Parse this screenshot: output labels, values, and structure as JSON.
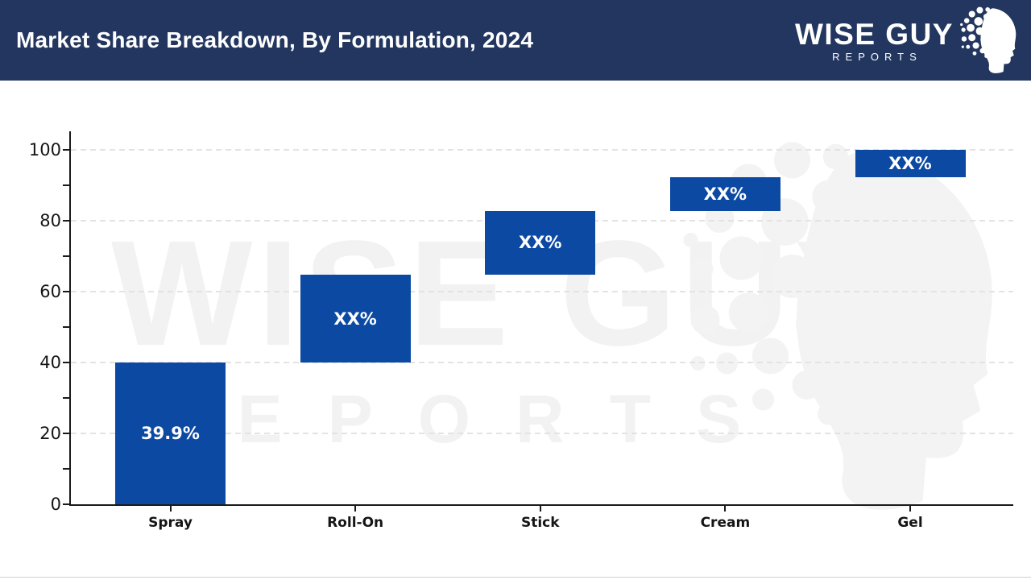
{
  "header": {
    "title": "Market Share Breakdown, By Formulation, 2024",
    "logo": {
      "name": "WISE GUY",
      "subname": "REPORTS"
    }
  },
  "watermark": {
    "line1": "WISE GUY",
    "line2": "REPORTS"
  },
  "colors": {
    "header_bg": "#22365F",
    "bar_fill": "#0C49A3",
    "grid_line": "#E3E3E3",
    "axis": "#1A1A1A",
    "bar_label": "#FFFFFF",
    "watermark": "#F2F2F2"
  },
  "chart_data": {
    "type": "bar",
    "variant": "waterfall",
    "title": "Market Share Breakdown, By Formulation, 2024",
    "xlabel": "",
    "ylabel": "",
    "categories": [
      "Spray",
      "Roll-On",
      "Stick",
      "Cream",
      "Gel"
    ],
    "segments": [
      {
        "category": "Spray",
        "start": 0,
        "end": 39.9,
        "label": "39.9%"
      },
      {
        "category": "Roll-On",
        "start": 39.9,
        "end": 64.7,
        "label": "XX%"
      },
      {
        "category": "Stick",
        "start": 64.7,
        "end": 82.8,
        "label": "XX%"
      },
      {
        "category": "Cream",
        "start": 82.8,
        "end": 92.3,
        "label": "XX%"
      },
      {
        "category": "Gel",
        "start": 92.3,
        "end": 100,
        "label": "XX%"
      }
    ],
    "yticks": [
      0,
      20,
      40,
      60,
      80,
      100
    ],
    "minor_tick_step": 10,
    "ylim": [
      0,
      105
    ],
    "grid": true,
    "legend": false
  }
}
